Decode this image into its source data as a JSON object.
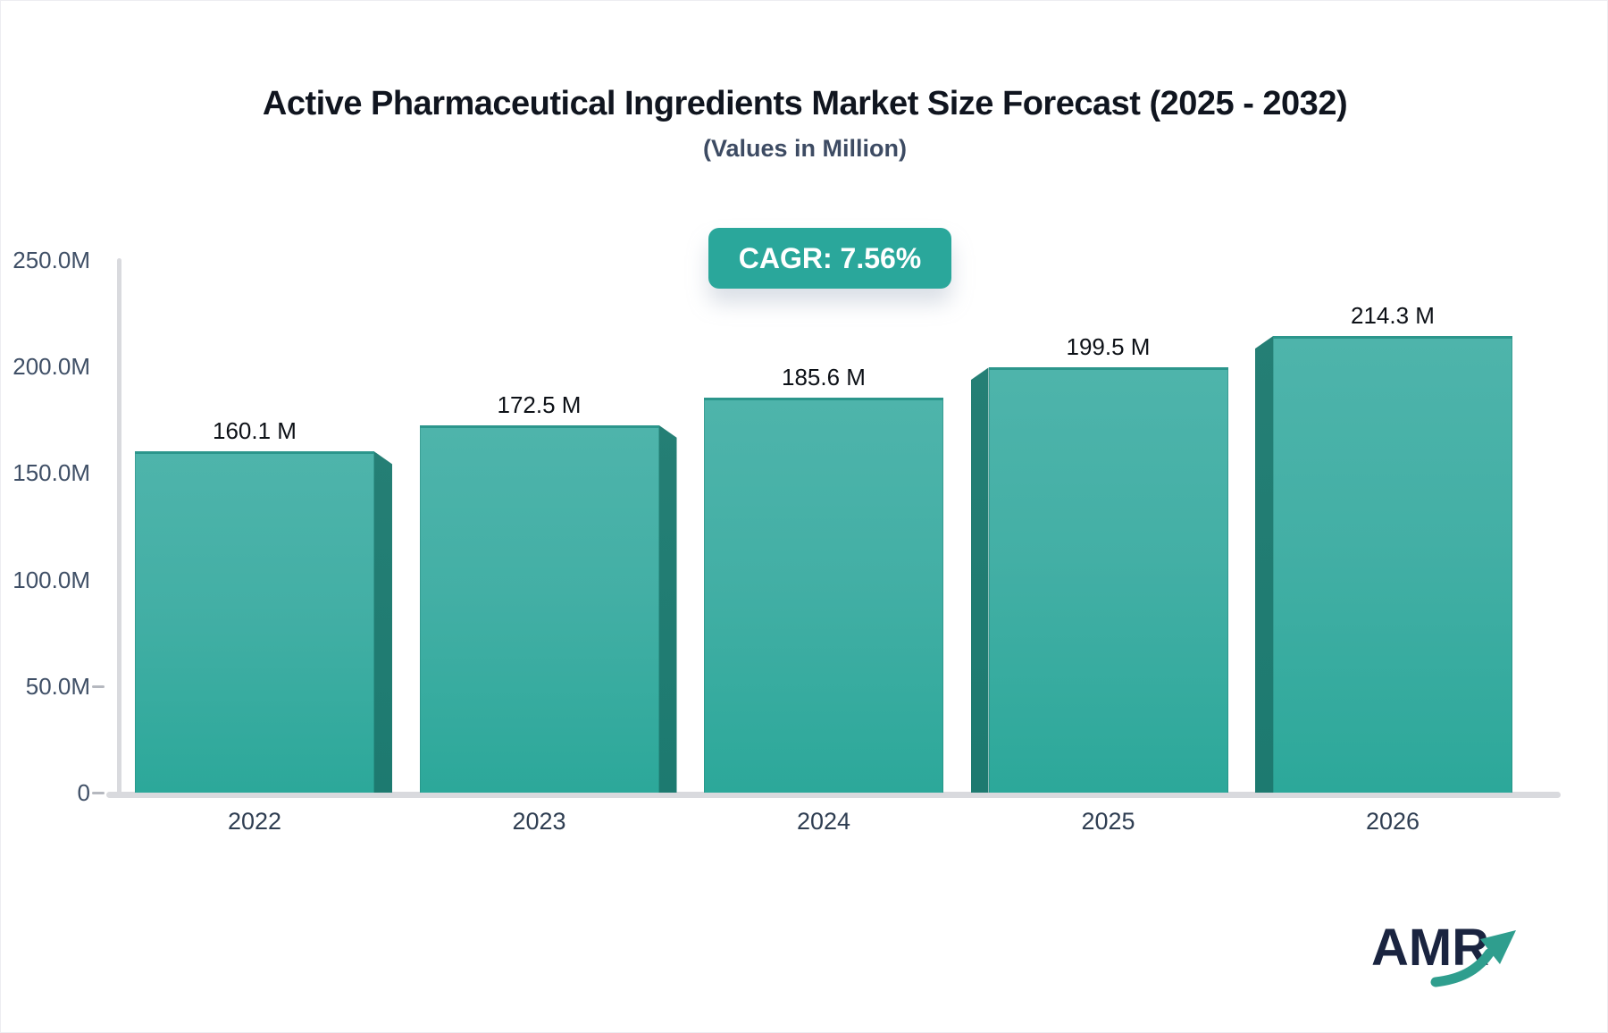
{
  "header": {
    "title": "Active Pharmaceutical Ingredients Market Size Forecast (2025 - 2032)",
    "subtitle": "(Values in Million)",
    "cagr_label": "CAGR: 7.56%"
  },
  "logo": {
    "text": "AMR",
    "icon": "growth-arrow-icon"
  },
  "colors": {
    "accent_teal": "#2aa79b",
    "bar_face_top": "#4eb4ab",
    "bar_face_bottom": "#2ca89a",
    "bar_side_dark": "#207d73",
    "bar_top_edge": "#2c968c",
    "axis_gray": "#d9dade",
    "badge_background": "#2aa79b",
    "badge_text": "#ffffff",
    "title_text": "#10151f",
    "subtitle_text": "#3d4b63",
    "logo_navy": "#1a2440"
  },
  "chart_data": {
    "type": "bar",
    "title": "Active Pharmaceutical Ingredients Market Size Forecast (2025 - 2032)",
    "subtitle": "(Values in Million)",
    "unit": "Million",
    "cagr_percent": 7.56,
    "categories": [
      "2022",
      "2023",
      "2024",
      "2025",
      "2026"
    ],
    "values": [
      160.1,
      172.5,
      185.6,
      199.5,
      214.3
    ],
    "value_labels": [
      "160.1 M",
      "172.5 M",
      "185.6 M",
      "199.5 M",
      "214.3 M"
    ],
    "xlabel": "",
    "ylabel": "",
    "ylim": [
      0,
      250
    ],
    "y_ticks": [
      {
        "value": 250,
        "label": "250.0M"
      },
      {
        "value": 200,
        "label": "200.0M"
      },
      {
        "value": 150,
        "label": "150.0M"
      },
      {
        "value": 100,
        "label": "100.0M"
      },
      {
        "value": 50,
        "label": "50.0M"
      },
      {
        "value": 0,
        "label": "0"
      }
    ],
    "grid": false,
    "legend_position": "none",
    "bar_style": "3d-teal-gradient"
  }
}
